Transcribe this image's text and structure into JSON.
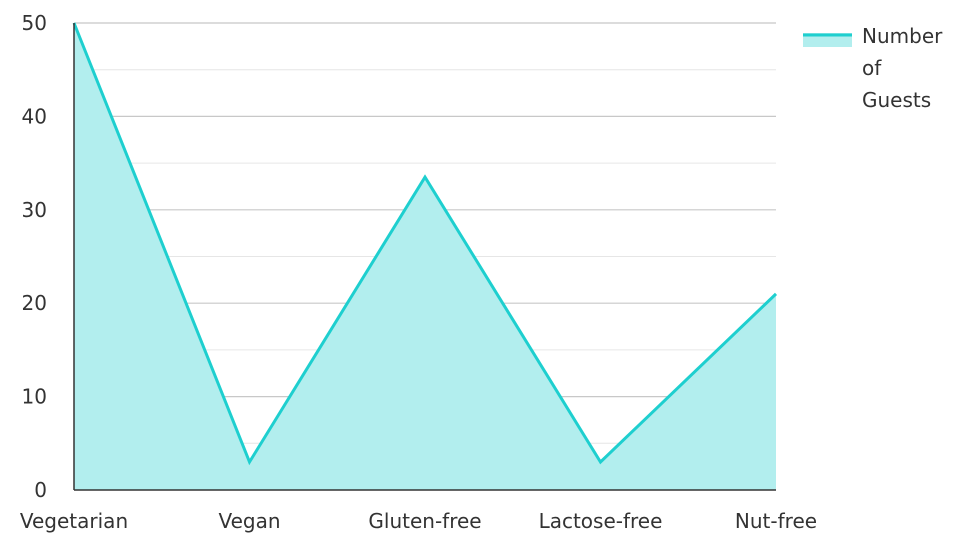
{
  "chart_data": {
    "type": "area",
    "categories": [
      "Vegetarian",
      "Vegan",
      "Gluten-free",
      "Lactose-free",
      "Nut-free"
    ],
    "series": [
      {
        "name": "Number of Guests",
        "values": [
          50,
          3,
          33.5,
          3,
          21
        ]
      }
    ],
    "ylim": [
      0,
      50
    ],
    "yticks": [
      0,
      10,
      20,
      30,
      40,
      50
    ],
    "grid": true,
    "legend_position": "top-right",
    "colors": {
      "line": "#1ecfcf",
      "fill": "#b2eeee"
    },
    "legend": {
      "lines": [
        "Number",
        "of",
        "Guests"
      ]
    }
  }
}
